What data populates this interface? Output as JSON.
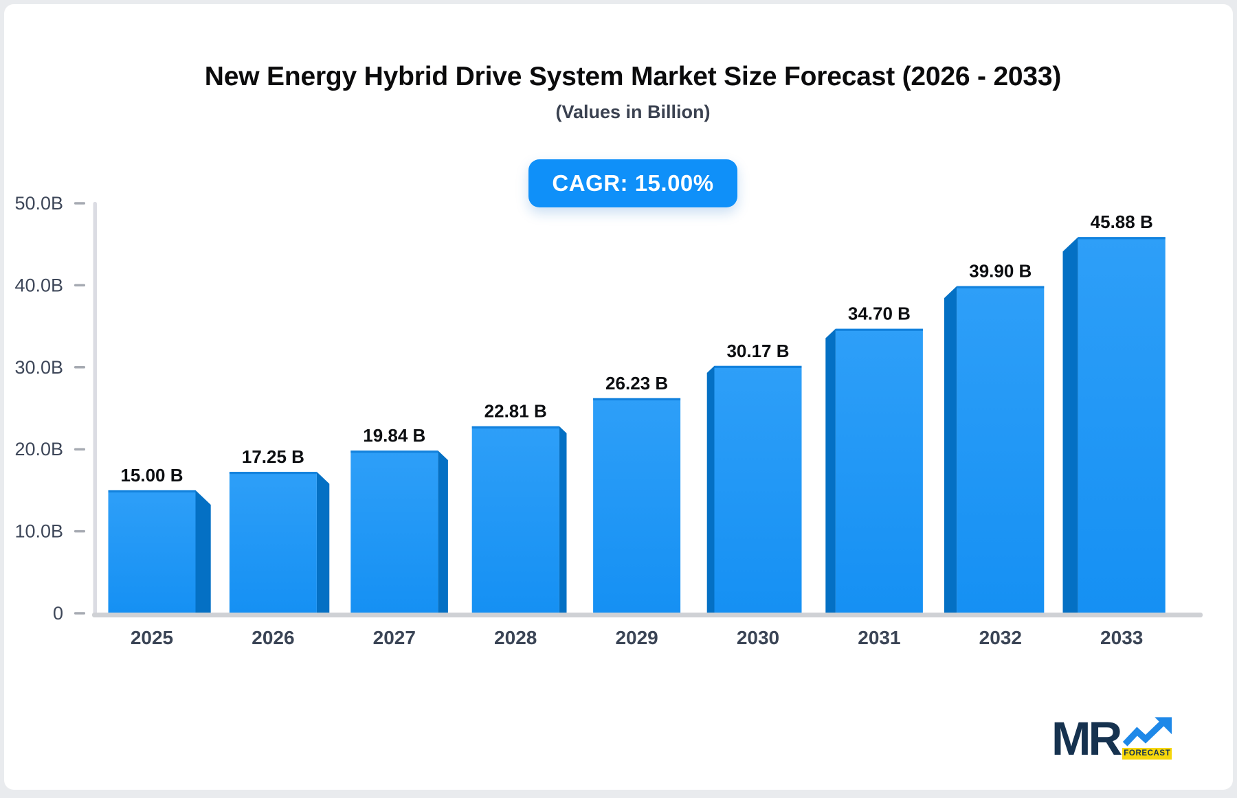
{
  "header": {
    "title": "New Energy Hybrid Drive System Market Size Forecast (2026 - 2033)",
    "subtitle": "(Values in Billion)",
    "cagr": "CAGR: 15.00%"
  },
  "chart_data": {
    "type": "bar",
    "title": "New Energy Hybrid Drive System Market Size Forecast (2026 - 2033)",
    "subtitle": "(Values in Billion)",
    "xlabel": "",
    "ylabel": "",
    "categories": [
      "2025",
      "2026",
      "2027",
      "2028",
      "2029",
      "2030",
      "2031",
      "2032",
      "2033"
    ],
    "values": [
      15.0,
      17.25,
      19.84,
      22.81,
      26.23,
      30.17,
      34.7,
      39.9,
      45.88
    ],
    "value_labels": [
      "15.00 B",
      "17.25 B",
      "19.84 B",
      "22.81 B",
      "26.23 B",
      "30.17 B",
      "34.70 B",
      "39.90 B",
      "45.88 B"
    ],
    "yticks": [
      {
        "v": 0,
        "label": "0"
      },
      {
        "v": 10,
        "label": "10.0B"
      },
      {
        "v": 20,
        "label": "20.0B"
      },
      {
        "v": 30,
        "label": "30.0B"
      },
      {
        "v": 40,
        "label": "40.0B"
      },
      {
        "v": 50,
        "label": "50.0B"
      }
    ],
    "ylim": [
      0,
      50
    ],
    "grid": false,
    "legend": false,
    "annotation": "CAGR: 15.00%"
  },
  "colors": {
    "bar_front_top": "#2e9ff8",
    "bar_front_bottom": "#1590f3",
    "bar_side": "#0470c4",
    "bar_top_edge": "#0d7ad6",
    "badge_bg": "#0f90f9",
    "badge_text": "#ffffff",
    "axis_line": "#dbdce3",
    "baseline": "#cfd1d5",
    "tick_dash": "#a6aab2",
    "tick_text": "#3e4759",
    "year_text": "#3a4455",
    "value_text": "#0c0e11",
    "logo_navy": "#16324f",
    "logo_arrow": "#1e88e8",
    "logo_yellow": "#f6d60b"
  },
  "footer": {
    "logo_mr": "MR",
    "logo_forecast": "FORECAST"
  }
}
